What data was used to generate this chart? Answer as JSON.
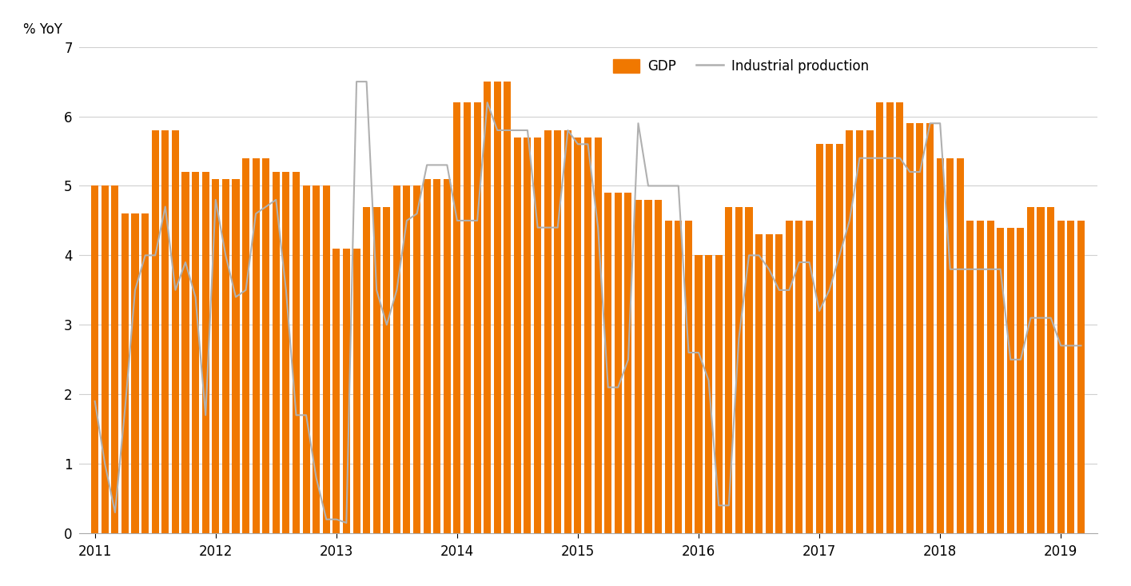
{
  "ylabel": "% YoY",
  "background_color": "#ffffff",
  "bar_color": "#f07800",
  "line_color": "#b0b0b0",
  "ylim": [
    0,
    7
  ],
  "yticks": [
    0,
    1,
    2,
    3,
    4,
    5,
    6,
    7
  ],
  "gdp_x": [
    2011.0,
    2011.083,
    2011.167,
    2011.25,
    2011.333,
    2011.417,
    2011.5,
    2011.583,
    2011.667,
    2011.75,
    2011.833,
    2011.917,
    2012.0,
    2012.083,
    2012.167,
    2012.25,
    2012.333,
    2012.417,
    2012.5,
    2012.583,
    2012.667,
    2012.75,
    2012.833,
    2012.917,
    2013.0,
    2013.083,
    2013.167,
    2013.25,
    2013.333,
    2013.417,
    2013.5,
    2013.583,
    2013.667,
    2013.75,
    2013.833,
    2013.917,
    2014.0,
    2014.083,
    2014.167,
    2014.25,
    2014.333,
    2014.417,
    2014.5,
    2014.583,
    2014.667,
    2014.75,
    2014.833,
    2014.917,
    2015.0,
    2015.083,
    2015.167,
    2015.25,
    2015.333,
    2015.417,
    2015.5,
    2015.583,
    2015.667,
    2015.75,
    2015.833,
    2015.917,
    2016.0,
    2016.083,
    2016.167,
    2016.25,
    2016.333,
    2016.417,
    2016.5,
    2016.583,
    2016.667,
    2016.75,
    2016.833,
    2016.917,
    2017.0,
    2017.083,
    2017.167,
    2017.25,
    2017.333,
    2017.417,
    2017.5,
    2017.583,
    2017.667,
    2017.75,
    2017.833,
    2017.917,
    2018.0,
    2018.083,
    2018.167,
    2018.25,
    2018.333,
    2018.417,
    2018.5,
    2018.583,
    2018.667,
    2018.75,
    2018.833,
    2018.917,
    2019.0,
    2019.083,
    2019.167
  ],
  "gdp_values": [
    5.0,
    5.0,
    5.0,
    4.6,
    4.6,
    4.6,
    5.8,
    5.8,
    5.8,
    5.2,
    5.2,
    5.2,
    5.1,
    5.1,
    5.1,
    5.4,
    5.4,
    5.4,
    5.2,
    5.2,
    5.2,
    5.0,
    5.0,
    5.0,
    4.1,
    4.1,
    4.1,
    4.7,
    4.7,
    4.7,
    5.0,
    5.0,
    5.0,
    5.1,
    5.1,
    5.1,
    6.2,
    6.2,
    6.2,
    6.5,
    6.5,
    6.5,
    5.7,
    5.7,
    5.7,
    5.8,
    5.8,
    5.8,
    5.7,
    5.7,
    5.7,
    4.9,
    4.9,
    4.9,
    4.8,
    4.8,
    4.8,
    4.5,
    4.5,
    4.5,
    4.0,
    4.0,
    4.0,
    4.7,
    4.7,
    4.7,
    4.3,
    4.3,
    4.3,
    4.5,
    4.5,
    4.5,
    5.6,
    5.6,
    5.6,
    5.8,
    5.8,
    5.8,
    6.2,
    6.2,
    6.2,
    5.9,
    5.9,
    5.9,
    5.4,
    5.4,
    5.4,
    4.5,
    4.5,
    4.5,
    4.4,
    4.4,
    4.4,
    4.7,
    4.7,
    4.7,
    4.5,
    4.5,
    4.5
  ],
  "ip_x": [
    2011.0,
    2011.083,
    2011.167,
    2011.25,
    2011.333,
    2011.417,
    2011.5,
    2011.583,
    2011.667,
    2011.75,
    2011.833,
    2011.917,
    2012.0,
    2012.083,
    2012.167,
    2012.25,
    2012.333,
    2012.417,
    2012.5,
    2012.583,
    2012.667,
    2012.75,
    2012.833,
    2012.917,
    2013.0,
    2013.083,
    2013.167,
    2013.25,
    2013.333,
    2013.417,
    2013.5,
    2013.583,
    2013.667,
    2013.75,
    2013.833,
    2013.917,
    2014.0,
    2014.083,
    2014.167,
    2014.25,
    2014.333,
    2014.417,
    2014.5,
    2014.583,
    2014.667,
    2014.75,
    2014.833,
    2014.917,
    2015.0,
    2015.083,
    2015.167,
    2015.25,
    2015.333,
    2015.417,
    2015.5,
    2015.583,
    2015.667,
    2015.75,
    2015.833,
    2015.917,
    2016.0,
    2016.083,
    2016.167,
    2016.25,
    2016.333,
    2016.417,
    2016.5,
    2016.583,
    2016.667,
    2016.75,
    2016.833,
    2016.917,
    2017.0,
    2017.083,
    2017.167,
    2017.25,
    2017.333,
    2017.417,
    2017.5,
    2017.583,
    2017.667,
    2017.75,
    2017.833,
    2017.917,
    2018.0,
    2018.083,
    2018.167,
    2018.25,
    2018.333,
    2018.417,
    2018.5,
    2018.583,
    2018.667,
    2018.75,
    2018.833,
    2018.917,
    2019.0,
    2019.083,
    2019.167
  ],
  "ip_values": [
    1.9,
    1.0,
    0.3,
    1.8,
    3.5,
    4.0,
    4.0,
    4.7,
    3.5,
    3.9,
    3.4,
    1.7,
    4.8,
    4.0,
    3.4,
    3.5,
    4.6,
    4.7,
    4.8,
    3.5,
    1.7,
    1.7,
    0.8,
    0.2,
    0.2,
    0.15,
    6.5,
    6.5,
    3.5,
    3.0,
    3.5,
    4.5,
    4.6,
    5.3,
    5.3,
    5.3,
    4.5,
    4.5,
    4.5,
    6.2,
    5.8,
    5.8,
    5.8,
    5.8,
    4.4,
    4.4,
    4.4,
    5.8,
    5.6,
    5.6,
    4.4,
    2.1,
    2.1,
    2.5,
    5.9,
    5.0,
    5.0,
    5.0,
    5.0,
    2.6,
    2.6,
    2.2,
    0.4,
    0.4,
    2.8,
    4.0,
    4.0,
    3.8,
    3.5,
    3.5,
    3.9,
    3.9,
    3.2,
    3.5,
    4.0,
    4.5,
    5.4,
    5.4,
    5.4,
    5.4,
    5.4,
    5.2,
    5.2,
    5.9,
    5.9,
    3.8,
    3.8,
    3.8,
    3.8,
    3.8,
    3.8,
    2.5,
    2.5,
    3.1,
    3.1,
    3.1,
    2.7,
    2.7,
    2.7
  ],
  "xtick_positions": [
    2011,
    2012,
    2013,
    2014,
    2015,
    2016,
    2017,
    2018,
    2019
  ],
  "xtick_labels": [
    "2011",
    "2012",
    "2013",
    "2014",
    "2015",
    "2016",
    "2017",
    "2018",
    "2019"
  ],
  "bar_width": 0.06
}
